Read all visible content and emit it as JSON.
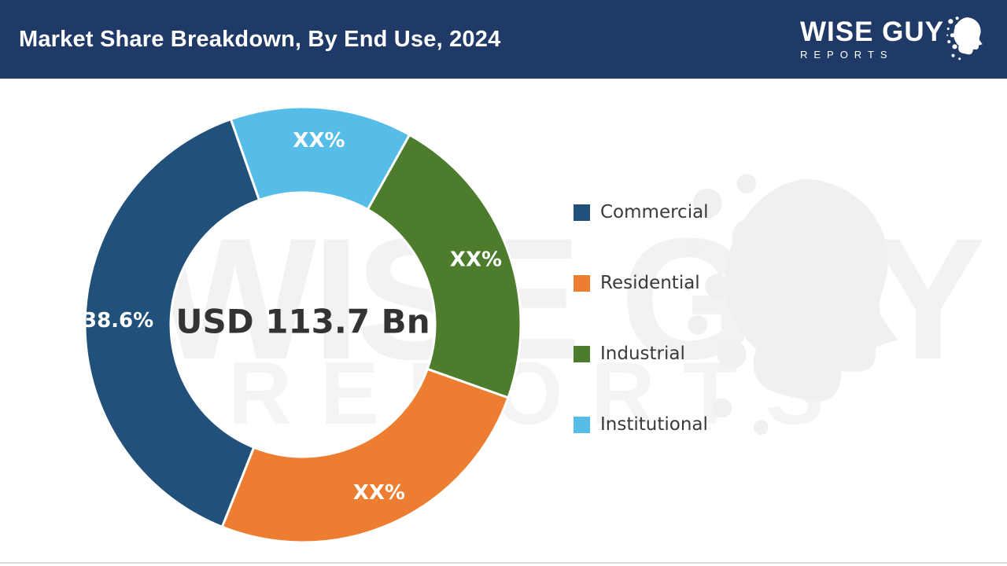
{
  "header": {
    "title": "Market Share Breakdown, By End Use, 2024",
    "logo": {
      "wordmark": "WISE GUY",
      "subtext": "REPORTS"
    }
  },
  "watermark": {
    "line1": "WISE GUY",
    "line2": "REPORTS"
  },
  "chart_data": {
    "type": "pie",
    "variant": "donut",
    "title": "Market Share Breakdown, By End Use, 2024",
    "center_label": "USD 113.7 Bn",
    "value_unit": "percent_share",
    "start_angle_deg": 109.3,
    "direction": "counterclockwise",
    "legend_position": "right",
    "segments": [
      {
        "name": "Commercial",
        "value": 38.6,
        "label": "38.6%",
        "color": "#21507A"
      },
      {
        "name": "Residential",
        "value": 25.6,
        "label": "XX%",
        "color": "#ED7D31"
      },
      {
        "name": "Industrial",
        "value": 22.3,
        "label": "XX%",
        "color": "#4C7C2C"
      },
      {
        "name": "Institutional",
        "value": 13.5,
        "label": "XX%",
        "color": "#55BDE7"
      }
    ]
  },
  "colors": {
    "header_bg": "#1F3A67",
    "center_text": "#333333",
    "legend_text": "#3A3A3A",
    "watermark": "#F2F2F2"
  }
}
